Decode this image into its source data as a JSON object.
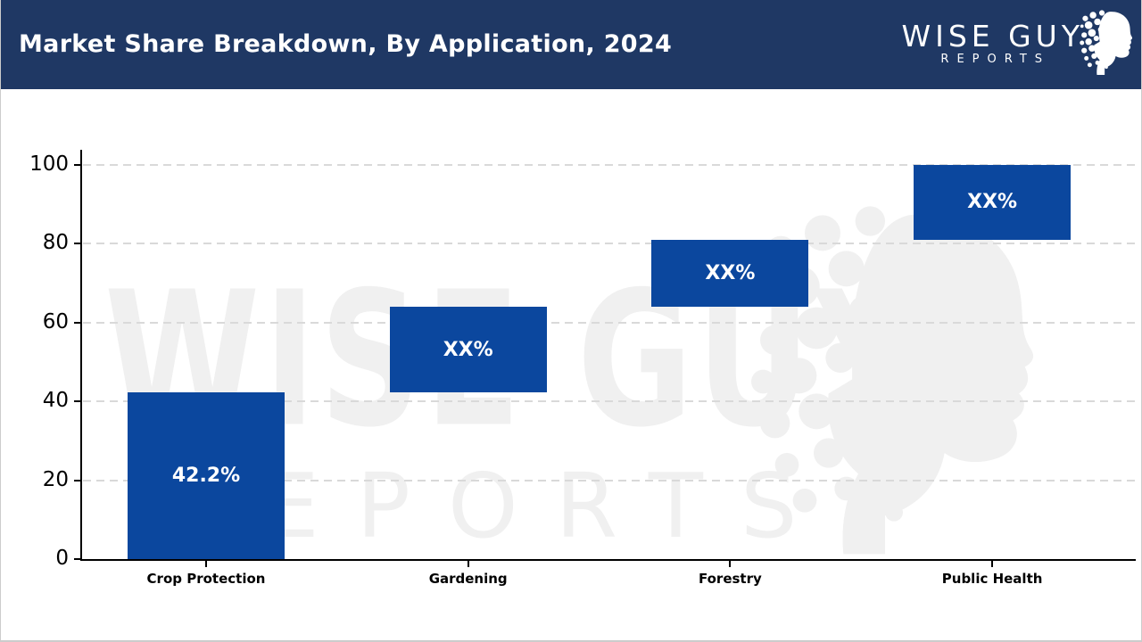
{
  "header": {
    "title": "Market Share Breakdown, By Application, 2024",
    "logo": {
      "line1": "WISE GUY",
      "line2": "REPORTS"
    }
  },
  "watermark": {
    "line1": "WISE GUY",
    "line2": "REPORTS"
  },
  "chart_data": {
    "type": "bar",
    "variant": "waterfall",
    "title": "Market Share Breakdown, By Application, 2024",
    "categories": [
      "Crop Protection",
      "Gardening",
      "Forestry",
      "Public Health"
    ],
    "series": [
      {
        "name": "Market Share %",
        "segments": [
          {
            "category": "Crop Protection",
            "start": 0,
            "end": 42.2,
            "label": "42.2%"
          },
          {
            "category": "Gardening",
            "start": 42.2,
            "end": 64,
            "label": "XX%"
          },
          {
            "category": "Forestry",
            "start": 64,
            "end": 81,
            "label": "XX%"
          },
          {
            "category": "Public Health",
            "start": 81,
            "end": 100,
            "label": "XX%"
          }
        ]
      }
    ],
    "yticks": [
      0,
      20,
      40,
      60,
      80,
      100
    ],
    "ylim": [
      0,
      104
    ],
    "xlabel": "",
    "ylabel": "",
    "legend": "none",
    "grid": "horizontal-dashed",
    "bar_color": "#0b479e",
    "bar_label_color": "#ffffff",
    "header_color": "#1f3864",
    "gridline_color": "#d9d9d9",
    "axis_color": "#000000",
    "watermark_color": "#f0f0f0"
  }
}
